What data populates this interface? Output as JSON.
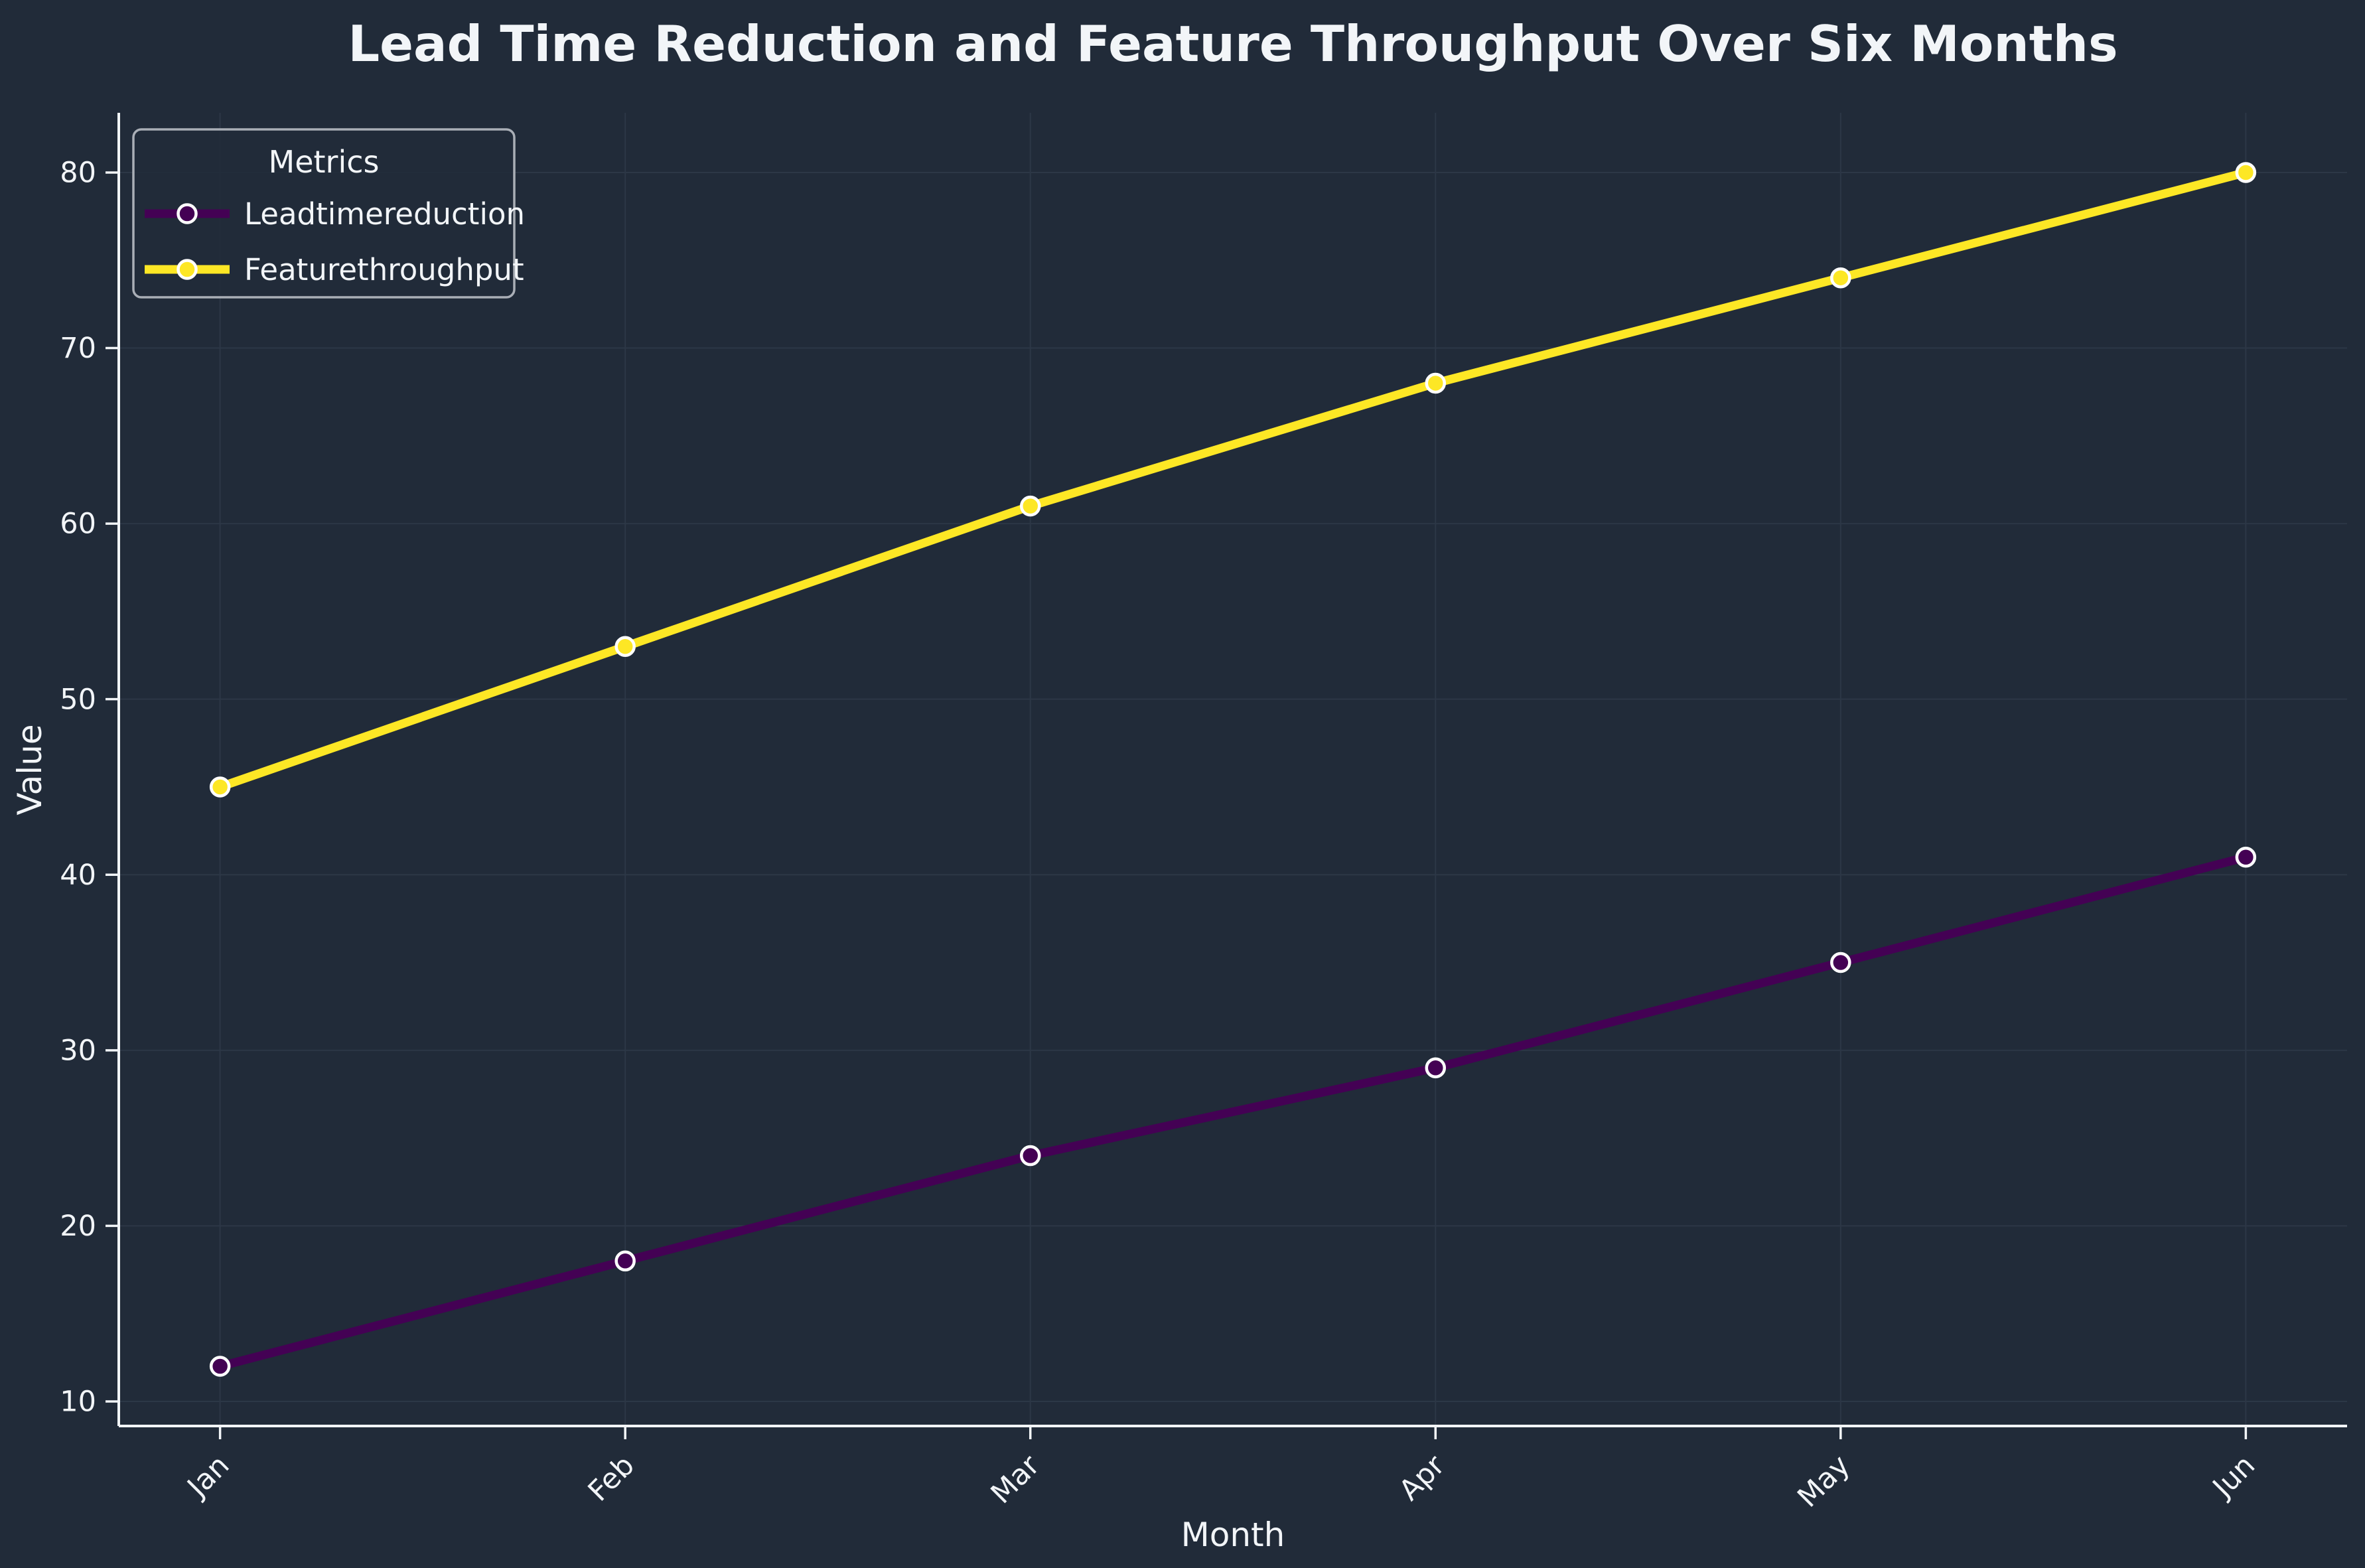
{
  "chart_data": {
    "type": "line",
    "title": "Lead Time Reduction and Feature Throughput Over Six Months",
    "xlabel": "Month",
    "ylabel": "Value",
    "categories": [
      "Jan",
      "Feb",
      "Mar",
      "Apr",
      "May",
      "Jun"
    ],
    "series": [
      {
        "name": "Leadtimereduction",
        "color": "#440154",
        "values": [
          12,
          18,
          24,
          29,
          35,
          41
        ]
      },
      {
        "name": "Featurethroughput",
        "color": "#FDE725",
        "values": [
          45,
          53,
          61,
          68,
          74,
          80
        ]
      }
    ],
    "legend": {
      "title": "Metrics",
      "position": "upper-left"
    },
    "y_ticks": [
      10,
      20,
      30,
      40,
      50,
      60,
      70,
      80
    ],
    "ylim": [
      8.6,
      83.4
    ],
    "x_tick_rotation": 45,
    "grid": true
  },
  "style": {
    "background": "#212B39",
    "grid_color": "#2C3746",
    "text_color": "#F2F5F8",
    "axis_color": "#F2F5F8",
    "legend_border": "#A9AEB6",
    "marker_edge": "#FFFFFF"
  }
}
